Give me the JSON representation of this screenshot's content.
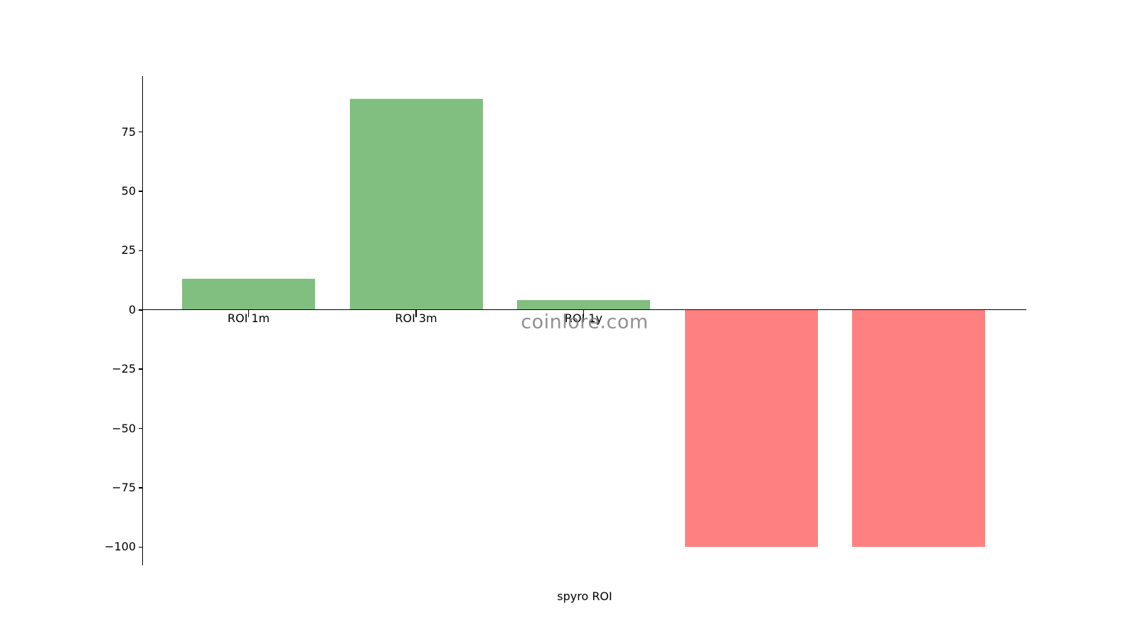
{
  "watermark": "coinlore.com",
  "chart_data": {
    "type": "bar",
    "title": "",
    "xlabel": "spyro ROI",
    "ylabel": "",
    "categories": [
      "ROI 1m",
      "ROI 3m",
      "ROI 1y",
      "",
      ""
    ],
    "values": [
      13,
      89,
      4,
      -100,
      -100
    ],
    "bar_colors": [
      "#80bf80",
      "#80bf80",
      "#80bf80",
      "#ff8080",
      "#ff8080"
    ],
    "colors": {
      "positive": "#80bf80",
      "negative": "#ff8080",
      "axis": "#000000",
      "watermark": "#7d7d7d"
    },
    "yticks": [
      75,
      50,
      25,
      0,
      -25,
      -50,
      -75,
      -100
    ],
    "ylim": [
      -108,
      99
    ],
    "grid": false,
    "legend_position": "none",
    "axis_style": "left-spine-and-zero-line-only"
  }
}
